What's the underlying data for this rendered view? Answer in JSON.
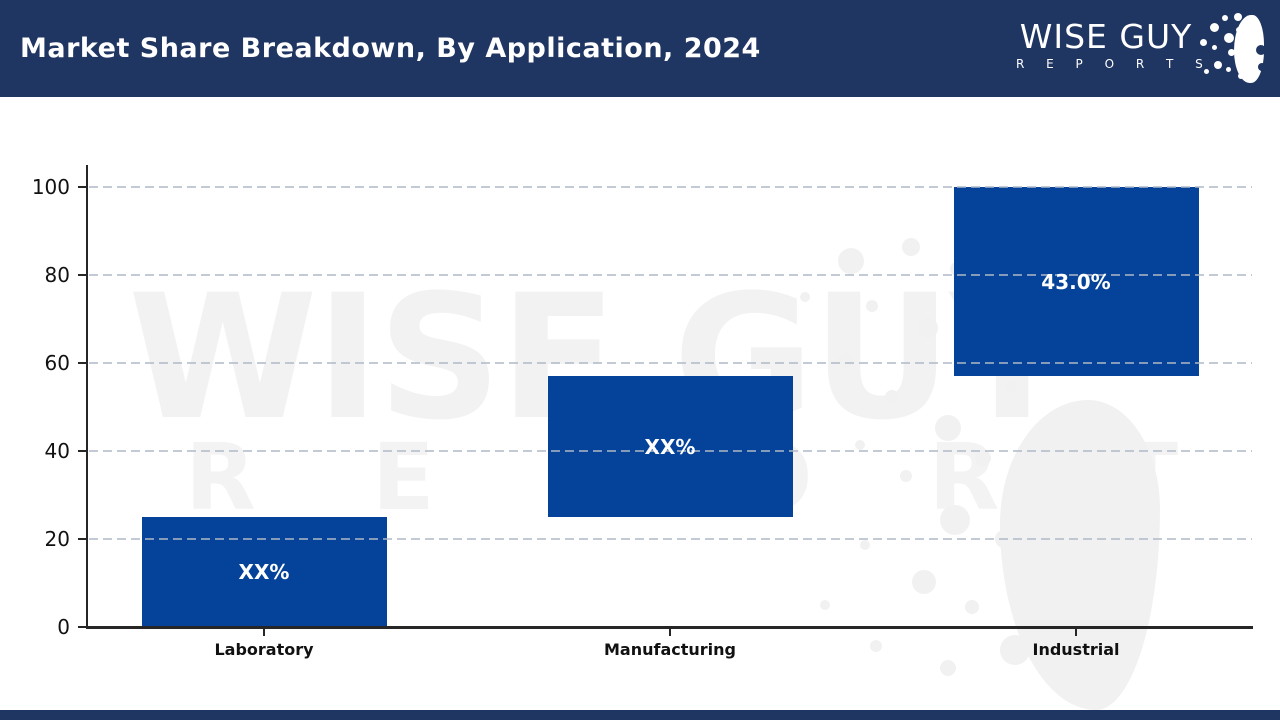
{
  "header": {
    "title": "Market Share Breakdown, By Application, 2024",
    "logo": {
      "line1": "WISE GUY",
      "line2": "R E P O R T S"
    }
  },
  "watermark": {
    "line1": "WISE GUY",
    "line2": "R E P O R T S"
  },
  "colors": {
    "header_bg": "#1f3562",
    "footer_bg": "#1f3562",
    "bar": "#05429a",
    "axis": "#262626"
  },
  "chart_data": {
    "type": "bar",
    "subtype": "waterfall",
    "title": "Market Share Breakdown, By Application, 2024",
    "xlabel": "",
    "ylabel": "",
    "categories": [
      "Laboratory",
      "Manufacturing",
      "Industrial"
    ],
    "segments": [
      {
        "category": "Laboratory",
        "start": 0,
        "end": 25,
        "label": "XX%"
      },
      {
        "category": "Manufacturing",
        "start": 25,
        "end": 57,
        "label": "XX%"
      },
      {
        "category": "Industrial",
        "start": 57,
        "end": 100,
        "label": "43.0%"
      }
    ],
    "yticks": [
      0,
      20,
      40,
      60,
      80,
      100
    ],
    "ylim": [
      0,
      105
    ],
    "grid": "horizontal-dashed",
    "legend": "none",
    "bar_color": "#05429a"
  }
}
